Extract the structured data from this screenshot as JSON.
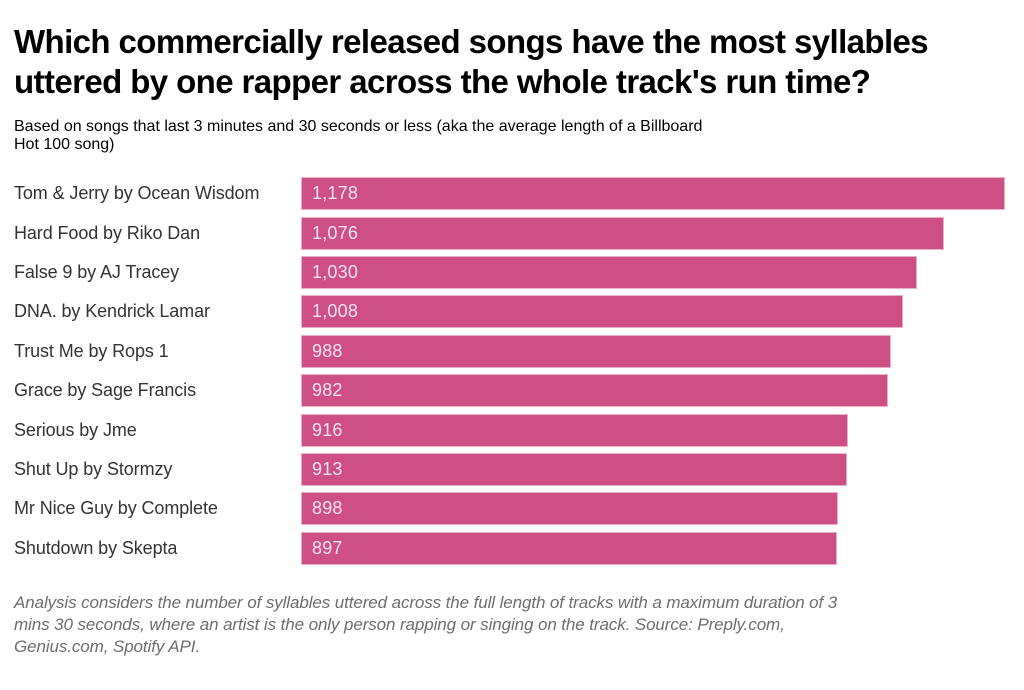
{
  "header": {
    "title_lines": [
      "Which commercially released songs have the most syllables",
      "uttered by one rapper across the whole track's run time?"
    ],
    "subtitle_lines": [
      "Based on songs that last 3 minutes and 30 seconds or less (aka the average length of a Billboard",
      "Hot 100 song)"
    ]
  },
  "chart_data": {
    "type": "bar",
    "orientation": "horizontal",
    "title": "Which commercially released songs have the most syllables uttered by one rapper across the whole track's run time?",
    "subtitle": "Based on songs that last 3 minutes and 30 seconds or less (aka the average length of a Billboard Hot 100 song)",
    "categories": [
      "Tom & Jerry by Ocean Wisdom",
      "Hard Food by Riko Dan",
      "False 9 by AJ Tracey",
      "DNA. by Kendrick Lamar",
      "Trust Me by Rops 1",
      "Grace by Sage Francis",
      "Serious by Jme",
      "Shut Up by Stormzy",
      "Mr Nice Guy by Complete",
      "Shutdown by Skepta"
    ],
    "values": [
      1178,
      1076,
      1030,
      1008,
      988,
      982,
      916,
      913,
      898,
      897
    ],
    "value_labels": [
      "1,178",
      "1,076",
      "1,030",
      "1,008",
      "988",
      "982",
      "916",
      "913",
      "898",
      "897"
    ],
    "xlabel": "",
    "ylabel": "",
    "xlim": [
      0,
      1178
    ],
    "grid": false,
    "legend": false,
    "value_label_position": "inside-start",
    "bar_color": "#cd4f83",
    "bar_border_color": "#e8b0ca",
    "value_label_color": "#f9e3ee",
    "category_label_color": "#333333"
  },
  "footnote": {
    "lines": [
      "Analysis considers the number of syllables uttered across the full length of tracks with a maximum duration of 3",
      "mins 30 seconds, where an artist is the only person rapping or singing on the track. Source: Preply.com,",
      "Genius.com, Spotify API."
    ]
  },
  "colors": {
    "background": "#ffffff",
    "title": "#000000",
    "subtitle": "#212121",
    "footnote": "#6d6d6d"
  }
}
